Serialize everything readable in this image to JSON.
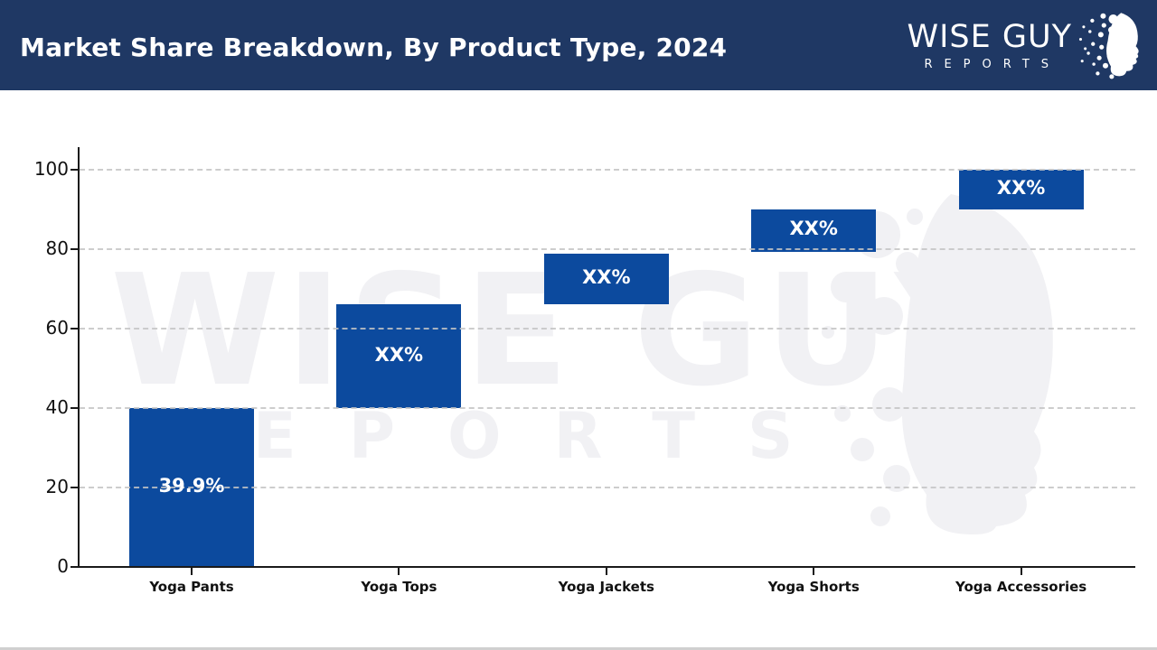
{
  "header": {
    "title": "Market Share Breakdown, By Product Type, 2024",
    "bg_color": "#1f3864",
    "logo": {
      "line1": "WISE GUY",
      "line2": "REPORTS"
    }
  },
  "watermark": {
    "line1": "WISE GUY",
    "line2": "REPORTS"
  },
  "chart_data": {
    "type": "bar",
    "variant": "waterfall",
    "title": "Market Share Breakdown, By Product Type, 2024",
    "categories": [
      "Yoga Pants",
      "Yoga Tops",
      "Yoga Jackets",
      "Yoga Shorts",
      "Yoga Accessories"
    ],
    "segments": [
      {
        "category": "Yoga Pants",
        "start": 0,
        "end": 39.9,
        "value_label": "39.9%"
      },
      {
        "category": "Yoga Tops",
        "start": 39.9,
        "end": 66,
        "value_label": "XX%"
      },
      {
        "category": "Yoga Jackets",
        "start": 66,
        "end": 78.8,
        "value_label": "XX%"
      },
      {
        "category": "Yoga Shorts",
        "start": 79.2,
        "end": 90,
        "value_label": "XX%"
      },
      {
        "category": "Yoga Accessories",
        "start": 90,
        "end": 100,
        "value_label": "XX%"
      }
    ],
    "y_ticks": [
      0,
      20,
      40,
      60,
      80,
      100
    ],
    "ylim": [
      0,
      105
    ],
    "xlabel": "",
    "ylabel": "",
    "grid": true,
    "grid_style": "dashed",
    "legend": false,
    "colors": {
      "bar": "#0c4a9e",
      "axis": "#1a1a1a",
      "grid": "#c4c4c4",
      "tick_text": "#111111",
      "bar_label_text": "#ffffff",
      "watermark": "#f1f1f4"
    }
  }
}
